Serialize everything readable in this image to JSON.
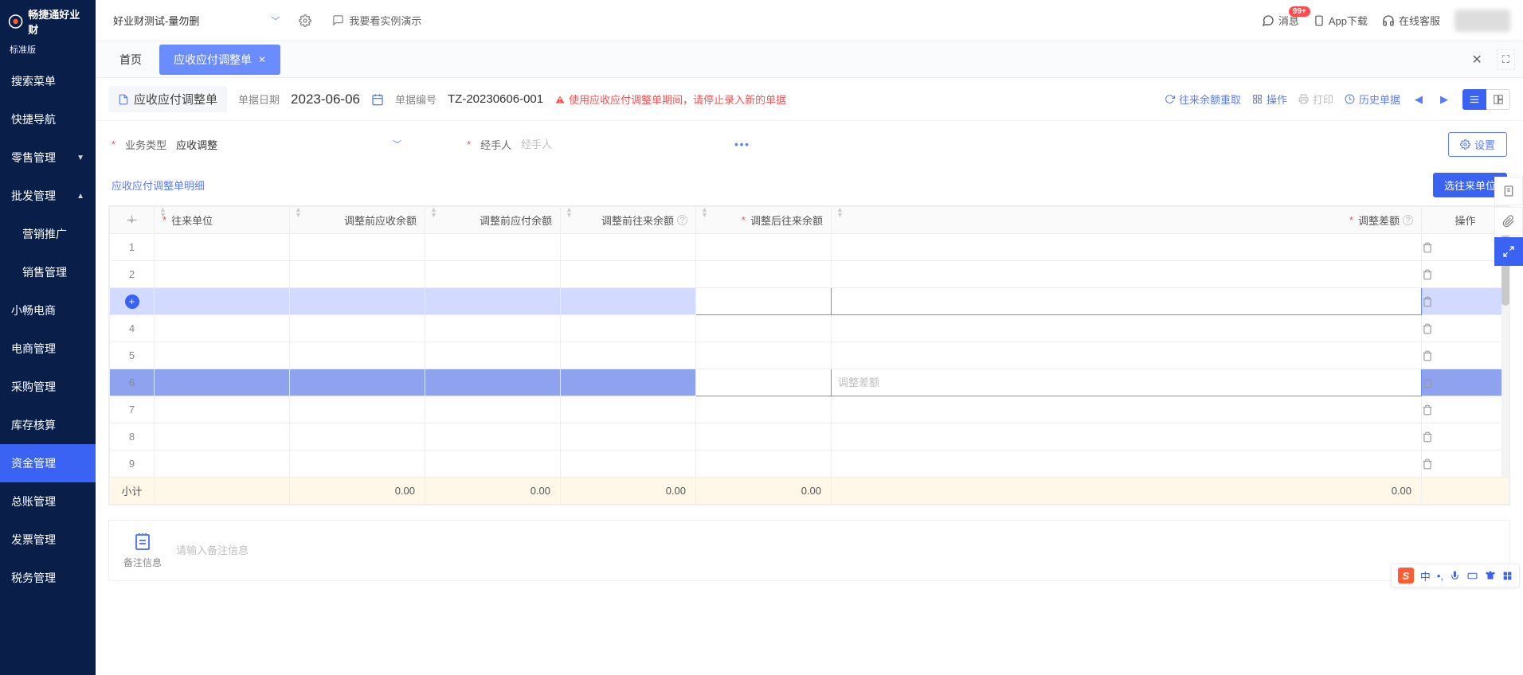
{
  "brand": {
    "name": "畅捷通好业财",
    "edition": "标准版"
  },
  "sidebar": {
    "items": [
      {
        "label": "搜索菜单",
        "caret": ""
      },
      {
        "label": "快捷导航",
        "caret": ""
      },
      {
        "label": "零售管理",
        "caret": "▼"
      },
      {
        "label": "批发管理",
        "caret": "▲"
      },
      {
        "label": "营销推广",
        "caret": "",
        "indent": true
      },
      {
        "label": "销售管理",
        "caret": "",
        "indent": true
      },
      {
        "label": "小畅电商",
        "caret": ""
      },
      {
        "label": "电商管理",
        "caret": ""
      },
      {
        "label": "采购管理",
        "caret": ""
      },
      {
        "label": "库存核算",
        "caret": ""
      },
      {
        "label": "资金管理",
        "caret": "",
        "active": true
      },
      {
        "label": "总账管理",
        "caret": ""
      },
      {
        "label": "发票管理",
        "caret": ""
      },
      {
        "label": "税务管理",
        "caret": ""
      }
    ]
  },
  "topbar": {
    "org": "好业财测试-量勿删",
    "demo": "我要看实例演示",
    "msg": "消息",
    "msg_badge": "99+",
    "app": "App下载",
    "support": "在线客服"
  },
  "tabs": {
    "home": "首页",
    "current": "应收应付调整单"
  },
  "form": {
    "title": "应收应付调整单",
    "date_label": "单据日期",
    "date_value": "2023-06-06",
    "code_label": "单据编号",
    "code_value": "TZ-20230606-001",
    "warning": "使用应收应付调整单期间，请停止录入新的单据",
    "actions": {
      "refetch": "往来余额重取",
      "ops": "操作",
      "print": "打印",
      "history": "历史单据"
    }
  },
  "fields": {
    "biz_type_label": "业务类型",
    "biz_type_value": "应收调整",
    "handler_label": "经手人",
    "handler_placeholder": "经手人",
    "settings": "设置"
  },
  "detail": {
    "title": "应收应付调整单明细",
    "select_unit": "选往来单位",
    "columns": {
      "unit": "往来单位",
      "before_recv": "调整前应收余额",
      "before_pay": "调整前应付余额",
      "before_net": "调整前往来余额",
      "after_net": "调整后往来余额",
      "diff": "调整差额",
      "ops": "操作"
    },
    "diff_placeholder": "调整差额",
    "subtotal_label": "小计",
    "subtotal": {
      "before_recv": "0.00",
      "before_pay": "0.00",
      "before_net": "0.00",
      "after_net": "0.00",
      "diff": "0.00"
    }
  },
  "remark": {
    "label": "备注信息",
    "placeholder": "请输入备注信息"
  },
  "ime": {
    "s": "S",
    "zh": "中",
    "dot": "▪",
    "mic": "🎤",
    "kb": "⌨",
    "shirt": "👕",
    "grid": "⠿"
  }
}
